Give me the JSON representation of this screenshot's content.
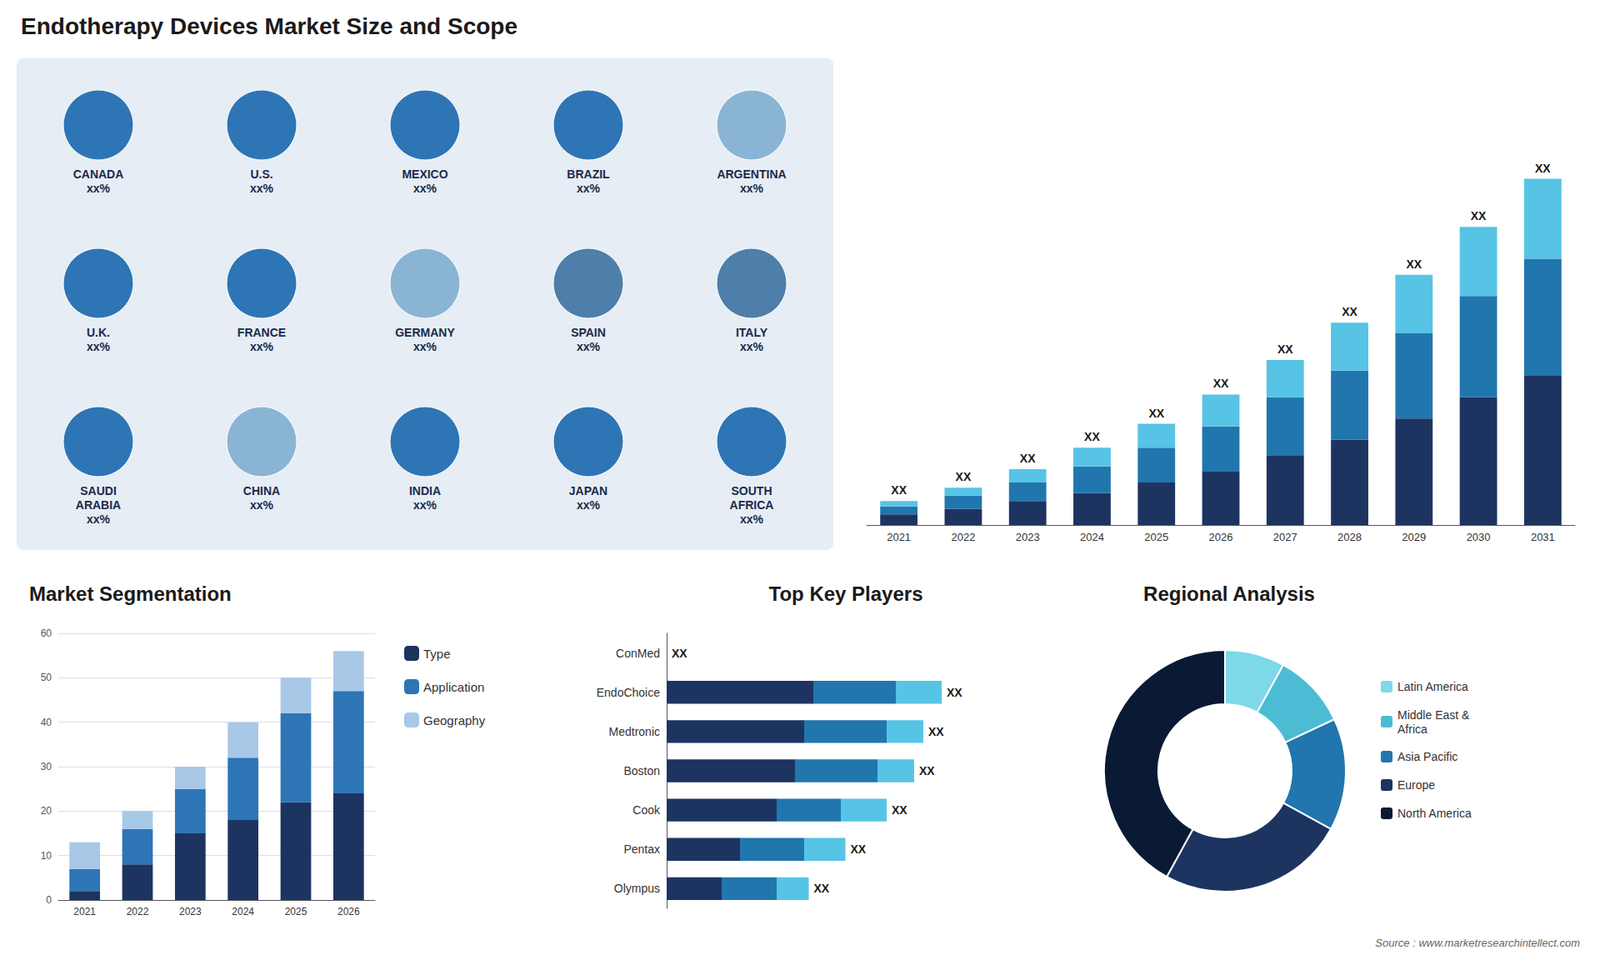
{
  "title": "Endotherapy Devices Market Size and Scope",
  "annotations": [
    "Source : www.marketresearchintellect.com"
  ],
  "chart_data": [
    {
      "type": "map",
      "categories": [
        "CANADA\nxx%",
        "U.S.\nxx%",
        "MEXICO\nxx%",
        "BRAZIL\nxx%",
        "ARGENTINA\nxx%",
        "U.K.\nxx%",
        "FRANCE\nxx%",
        "GERMANY\nxx%",
        "SPAIN\nxx%",
        "ITALY\nxx%",
        "SAUDI\nARABIA\nxx%",
        "CHINA\nxx%",
        "INDIA\nxx%",
        "JAPAN\nxx%",
        "SOUTH\nAFRICA\nxx%"
      ],
      "colors": [
        "#2e75b6",
        "#2e75b6",
        "#2e75b6",
        "#2e75b6",
        "#8ab4d4",
        "#2e75b6",
        "#2e75b6",
        "#8ab4d4",
        "#4d7faa",
        "#4d7faa",
        "#2e75b6",
        "#8ab4d4",
        "#2e75b6",
        "#2e75b6",
        "#2e75b6"
      ]
    },
    {
      "type": "bar",
      "stacked": true,
      "categories": [
        "2021",
        "2022",
        "2023",
        "2024",
        "2025",
        "2026",
        "2027",
        "2028",
        "2029",
        "2030",
        "2031"
      ],
      "series": [
        {
          "color": "#1d3461",
          "values": [
            2,
            3,
            4.5,
            6,
            8,
            10,
            13,
            16,
            20,
            24,
            28
          ]
        },
        {
          "color": "#2176ae",
          "values": [
            1.5,
            2.5,
            3.5,
            5,
            6.5,
            8.5,
            11,
            13,
            16,
            19,
            22
          ]
        },
        {
          "color": "#57c4e5",
          "values": [
            1,
            1.5,
            2.5,
            3.5,
            4.5,
            6,
            7,
            9,
            11,
            13,
            15
          ],
          "value_labels": [
            "XX",
            "XX",
            "XX",
            "XX",
            "XX",
            "XX",
            "XX",
            "XX",
            "XX",
            "XX",
            "XX"
          ]
        }
      ],
      "ylim": [
        0,
        84.5
      ],
      "tick_labels": "x",
      "grid": false
    },
    {
      "type": "bar",
      "title": "Market Segmentation",
      "stacked": true,
      "categories": [
        "2021",
        "2022",
        "2023",
        "2024",
        "2025",
        "2026"
      ],
      "series": [
        {
          "name": "Type",
          "color": "#1d3461",
          "values": [
            2,
            8,
            15,
            18,
            22,
            24
          ]
        },
        {
          "name": "Application",
          "color": "#2e75b6",
          "values": [
            5,
            8,
            10,
            14,
            20,
            23
          ]
        },
        {
          "name": "Geography",
          "color": "#a8c8e8",
          "values": [
            6,
            4,
            5,
            8,
            8,
            9
          ]
        }
      ],
      "ylim": [
        0,
        60
      ],
      "yticks": [
        0,
        10,
        20,
        30,
        40,
        50,
        60
      ],
      "grid": true,
      "legend": "right"
    },
    {
      "type": "bar",
      "title": "Top Key Players",
      "orientation": "horizontal",
      "stacked": true,
      "categories": [
        "ConMed",
        "EndoChoice",
        "Medtronic",
        "Boston",
        "Cook",
        "Pentax",
        "Olympus"
      ],
      "series": [
        {
          "color": "#1d3461",
          "values": [
            0,
            32,
            30,
            28,
            24,
            16,
            12
          ]
        },
        {
          "color": "#2176ae",
          "values": [
            0,
            18,
            18,
            18,
            14,
            14,
            12
          ]
        },
        {
          "color": "#57c4e5",
          "values": [
            0,
            10,
            8,
            8,
            10,
            9,
            7
          ],
          "value_labels": [
            "XX",
            "XX",
            "XX",
            "XX",
            "XX",
            "XX",
            "XX"
          ]
        }
      ],
      "xlim": [
        0,
        80
      ],
      "tick_labels": "y",
      "grid": false
    },
    {
      "type": "pie",
      "title": "Regional Analysis",
      "categories": [
        "Latin America",
        "Middle East &\nAfrica",
        "Asia Pacific",
        "Europe",
        "North America"
      ],
      "values": [
        8,
        10,
        15,
        25,
        42
      ],
      "colors": [
        "#7dd8e8",
        "#4bbcd4",
        "#2176ae",
        "#1d3461",
        "#0a1a35"
      ],
      "legend": "right"
    }
  ]
}
